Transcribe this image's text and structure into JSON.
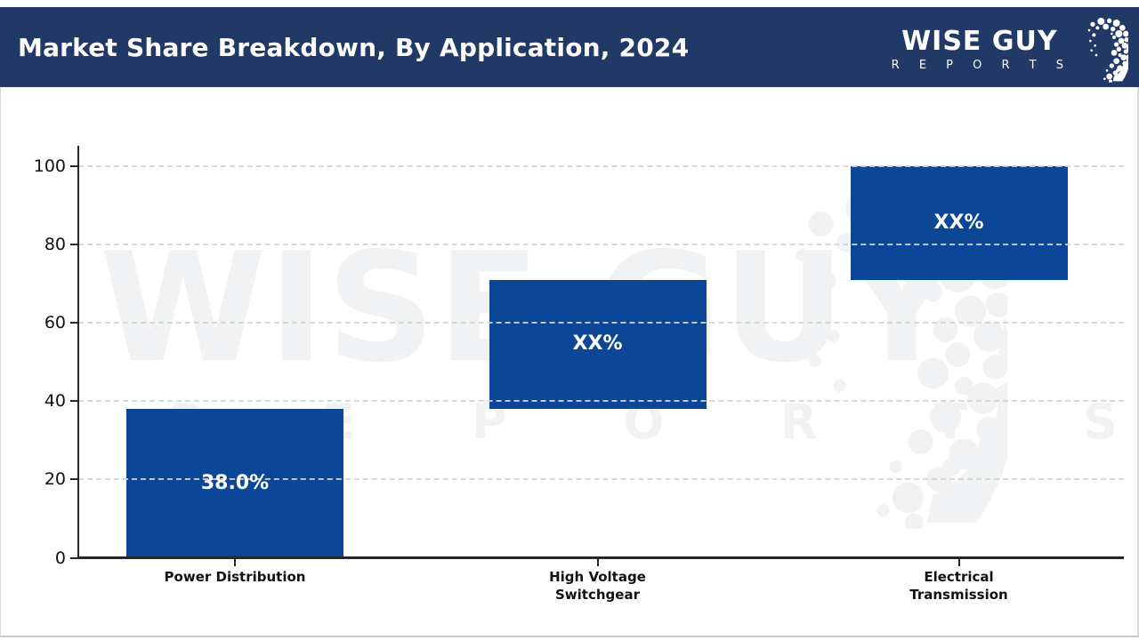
{
  "header": {
    "title": "Market Share Breakdown, By Application, 2024",
    "bg_color": "#213966",
    "logo": {
      "title": "WISE GUY",
      "subtitle": "R E P O R T S"
    }
  },
  "watermark": {
    "title": "WISE GUY",
    "subtitle": "R E P O R T S"
  },
  "chart_data": {
    "type": "bar",
    "variant": "waterfall",
    "title": "Market Share Breakdown, By Application, 2024",
    "categories": [
      "Power Distribution",
      "High Voltage Switchgear",
      "Electrical Transmission"
    ],
    "category_lines": [
      [
        "Power Distribution"
      ],
      [
        "High Voltage",
        "Switchgear"
      ],
      [
        "Electrical",
        "Transmission"
      ]
    ],
    "segments": [
      {
        "category": "Power Distribution",
        "start": 0,
        "end": 38,
        "label": "38.0%"
      },
      {
        "category": "High Voltage Switchgear",
        "start": 38,
        "end": 71,
        "label": "XX%"
      },
      {
        "category": "Electrical Transmission",
        "start": 71,
        "end": 100,
        "label": "XX%"
      }
    ],
    "segment_sizes": [
      38,
      33,
      29
    ],
    "yticks": [
      0,
      20,
      40,
      60,
      80,
      100
    ],
    "ylim": [
      0,
      105
    ],
    "xlabel": "",
    "ylabel": "",
    "legend": "none",
    "grid": "horizontal-dashed-above-bars",
    "colors": {
      "bar": "#0b4796",
      "bar_label": "#ffffff",
      "grid": "#d3d3d3",
      "axis": "#262626",
      "header_bg": "#213966",
      "watermark": "#f1f2f4"
    }
  }
}
